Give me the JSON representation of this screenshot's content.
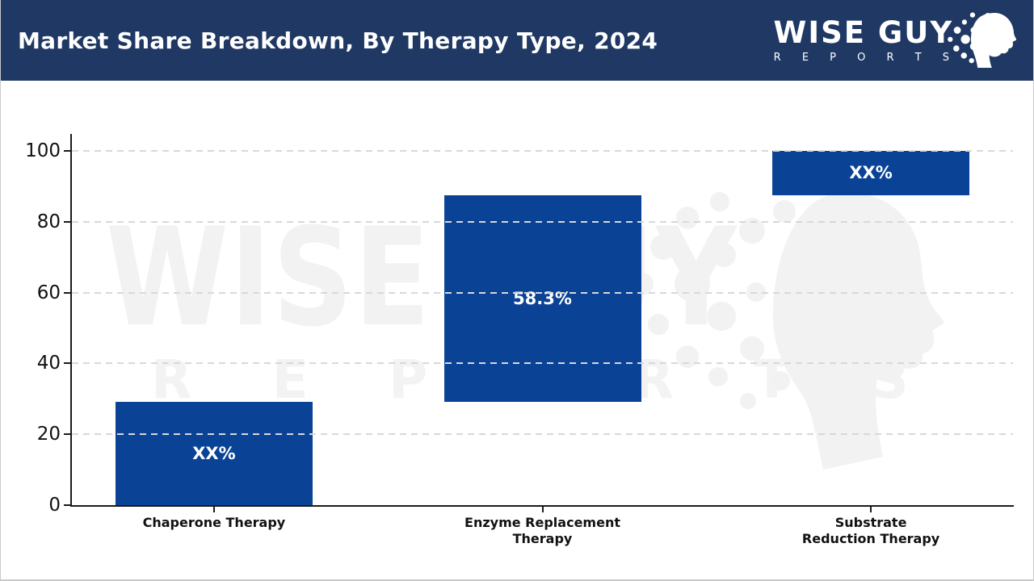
{
  "page": {
    "background": "#ffffff",
    "border_color": "#c9c9c9"
  },
  "header": {
    "background": "#1f3864",
    "title": "Market Share Breakdown, By Therapy Type, 2024",
    "title_color": "#ffffff",
    "logo": {
      "wordmark": "WISE GUY",
      "sub": "R E P O R T S",
      "color": "#ffffff"
    }
  },
  "watermark": {
    "wordmark": "WISE GUY",
    "sub": "R E P O R T S",
    "color": "#f2f2f2"
  },
  "chart_data": {
    "type": "bar",
    "subtype": "waterfall",
    "title": "Market Share Breakdown, By Therapy Type, 2024",
    "categories": [
      {
        "name": "Chaperone Therapy",
        "lines": [
          "Chaperone Therapy"
        ]
      },
      {
        "name": "Enzyme Replacement Therapy",
        "lines": [
          "Enzyme Replacement",
          "Therapy"
        ]
      },
      {
        "name": "Substrate Reduction Therapy",
        "lines": [
          "Substrate",
          "Reduction Therapy"
        ]
      }
    ],
    "series": [
      {
        "name": "Market share (%)",
        "segments": [
          {
            "category": "Chaperone Therapy",
            "start": 0,
            "end": 29.2,
            "label": "XX%"
          },
          {
            "category": "Enzyme Replacement Therapy",
            "start": 29.2,
            "end": 87.5,
            "label": "58.3%"
          },
          {
            "category": "Substrate Reduction Therapy",
            "start": 87.5,
            "end": 100,
            "label": "XX%"
          }
        ]
      }
    ],
    "bar_color": "#0a4396",
    "bar_label_color": "#ffffff",
    "ylim": [
      0,
      100
    ],
    "yticks": [
      0,
      20,
      40,
      60,
      80,
      100
    ],
    "grid": {
      "horizontal": true,
      "style": "dashed",
      "color": "#d8d8d8"
    },
    "axis_color": "#1a1a1a",
    "xlabel": "",
    "ylabel": "",
    "legend": null
  }
}
